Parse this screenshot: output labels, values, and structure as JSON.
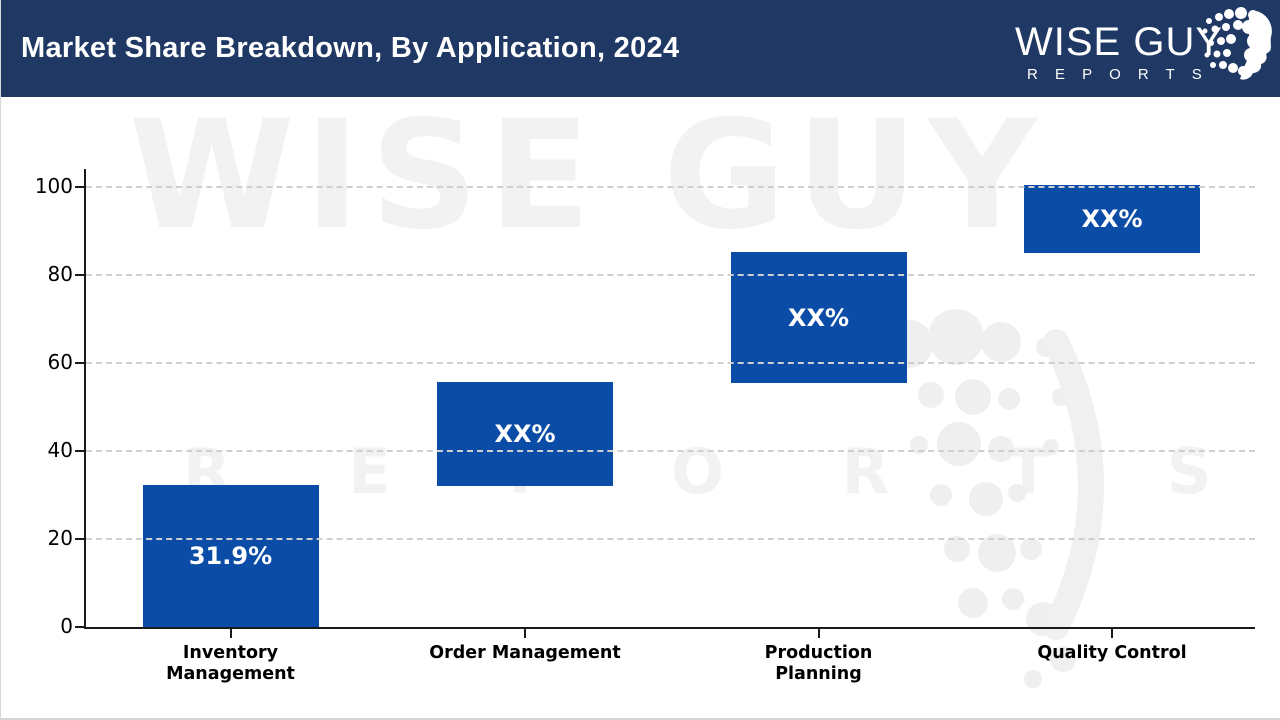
{
  "header": {
    "title": "Market Share Breakdown, By Application, 2024",
    "logo_line1": "WISE GUY",
    "logo_line2": "R E P O R T S",
    "bg_color": "#1f3864"
  },
  "watermark": {
    "line1": "WISE GUY",
    "line2": "R E P O R T S"
  },
  "chart_data": {
    "type": "bar",
    "subtype": "floating-segment-bars",
    "title": "Market Share Breakdown, By Application, 2024",
    "unit": "%",
    "categories": [
      "Inventory Management",
      "Order Management",
      "Production Planning",
      "Quality Control"
    ],
    "category_display": [
      "Inventory\nManagement",
      "Order Management",
      "Production\nPlanning",
      "Quality Control"
    ],
    "segments": [
      {
        "category": "Inventory Management",
        "start": 0,
        "end": 32.3,
        "label": "31.9%"
      },
      {
        "category": "Order Management",
        "start": 32,
        "end": 55.7,
        "label": "XX%"
      },
      {
        "category": "Production Planning",
        "start": 55.4,
        "end": 85.2,
        "label": "XX%"
      },
      {
        "category": "Quality Control",
        "start": 85,
        "end": 100.5,
        "label": "XX%"
      }
    ],
    "yticks": [
      0,
      20,
      40,
      60,
      80,
      100
    ],
    "ylim": [
      0,
      104
    ],
    "grid": "horizontal-dashed",
    "bar_color": "#0b4da6",
    "bar_label_color": "#ffffff",
    "axis_color": "#1a1a1a",
    "grid_color": "#cfcfcf"
  }
}
